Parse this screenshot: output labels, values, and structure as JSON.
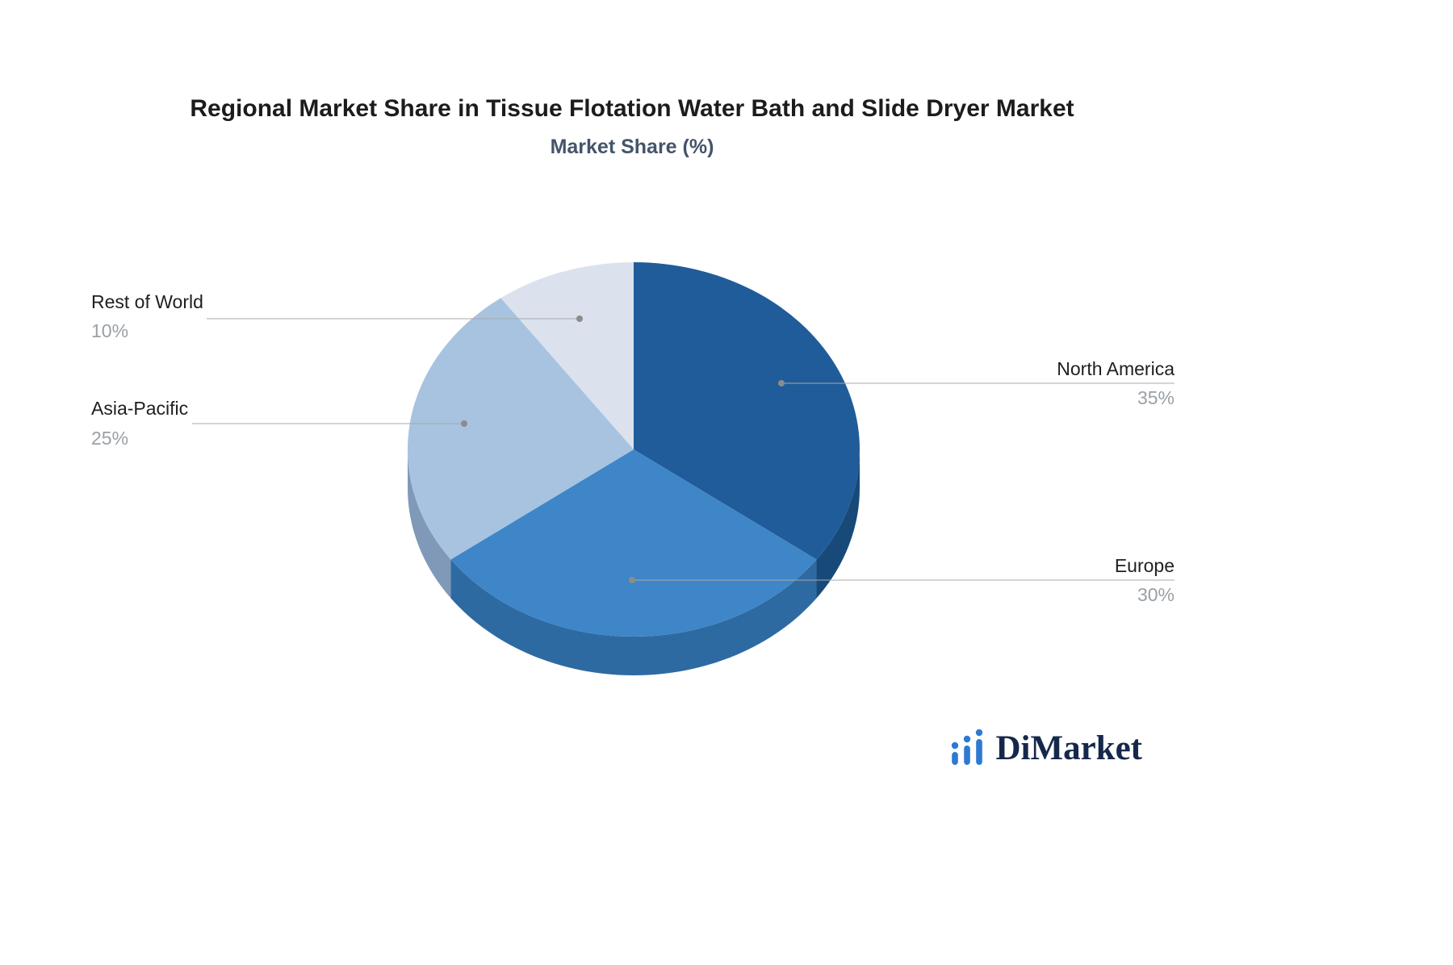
{
  "chart_data": {
    "type": "pie",
    "style": "3d",
    "title": "Regional Market Share in Tissue Flotation Water Bath and Slide Dryer Market",
    "subtitle": "Market Share (%)",
    "labels": [
      "North America",
      "Europe",
      "Asia-Pacific",
      "Rest of World"
    ],
    "values": [
      35,
      30,
      25,
      10
    ],
    "value_labels": [
      "35%",
      "30%",
      "25%",
      "10%"
    ],
    "colors": [
      "#1f5c99",
      "#3e86c7",
      "#a7c3e0",
      "#dbe2ee"
    ],
    "side_colors": [
      "#174a78",
      "#2e6aa2",
      "#8099b8",
      "#b7c1d0"
    ],
    "start_angle_deg": 0,
    "direction": "clockwise",
    "legend_position": "callout-labels",
    "label_color": "#1f1f1f",
    "value_color": "#9aa0a6",
    "line_color": "#a8a8a8",
    "dot_color": "#8c8c8c"
  },
  "branding": {
    "logo_text": "DiMarket",
    "logo_icon": "rising-bars-icon",
    "icon_color": "#2e7ad1",
    "text_color": "#16284a"
  }
}
